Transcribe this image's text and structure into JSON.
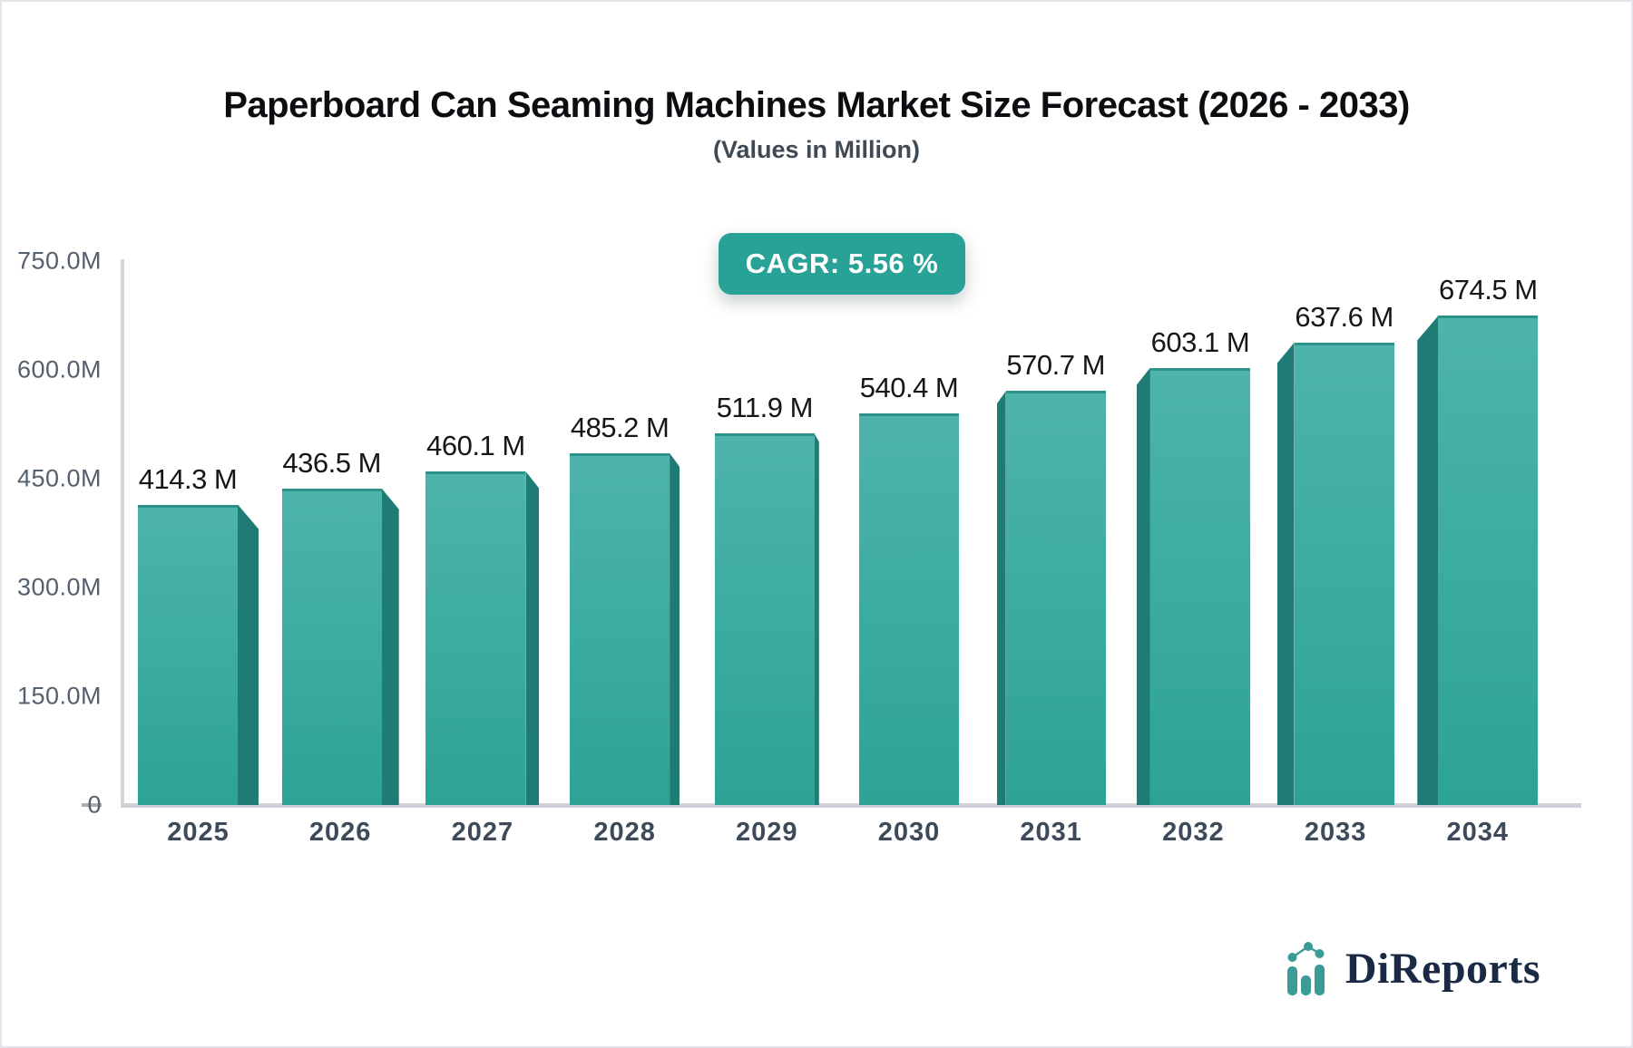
{
  "title": "Paperboard Can Seaming Machines Market Size Forecast (2026 - 2033)",
  "subtitle": "(Values in Million)",
  "cagr_badge": "CAGR: 5.56 %",
  "brand": {
    "name": "DiReports",
    "icon": "bar-line-chart-icon"
  },
  "colors": {
    "accent_teal": "#28a296",
    "bar_face_top": "#4db4ab",
    "bar_face_bottom": "#2ca395",
    "bar_side": "#1e7c74",
    "bar_top_edge": "#2b9389",
    "axis_line": "#d2d5da",
    "tick_text": "#55606d",
    "year_text": "#3d4a59",
    "value_text": "#14171a",
    "logo_navy": "#1a2a44",
    "logo_teal": "#3d9b97"
  },
  "chart_data": {
    "type": "bar",
    "title": "Paperboard Can Seaming Machines Market Size Forecast (2026 - 2033)",
    "subtitle": "(Values in Million)",
    "unit": "Million",
    "categories": [
      "2025",
      "2026",
      "2027",
      "2028",
      "2029",
      "2030",
      "2031",
      "2032",
      "2033",
      "2034"
    ],
    "values": [
      414.3,
      436.5,
      460.1,
      485.2,
      511.9,
      540.4,
      570.7,
      603.1,
      637.6,
      674.5
    ],
    "value_labels": [
      "414.3 M",
      "436.5 M",
      "460.1 M",
      "485.2 M",
      "511.9 M",
      "540.4 M",
      "570.7 M",
      "603.1 M",
      "637.6 M",
      "674.5 M"
    ],
    "y_ticks": [
      {
        "value": 750,
        "label": "750.0M"
      },
      {
        "value": 600,
        "label": "600.0M"
      },
      {
        "value": 450,
        "label": "450.0M"
      },
      {
        "value": 300,
        "label": "300.0M"
      },
      {
        "value": 150,
        "label": "150.0M"
      },
      {
        "value": 0,
        "label": "0"
      }
    ],
    "ylim": [
      0,
      750
    ],
    "grid": false,
    "legend": false,
    "cagr": "5.56 %",
    "style": "3d-perspective-bars"
  }
}
